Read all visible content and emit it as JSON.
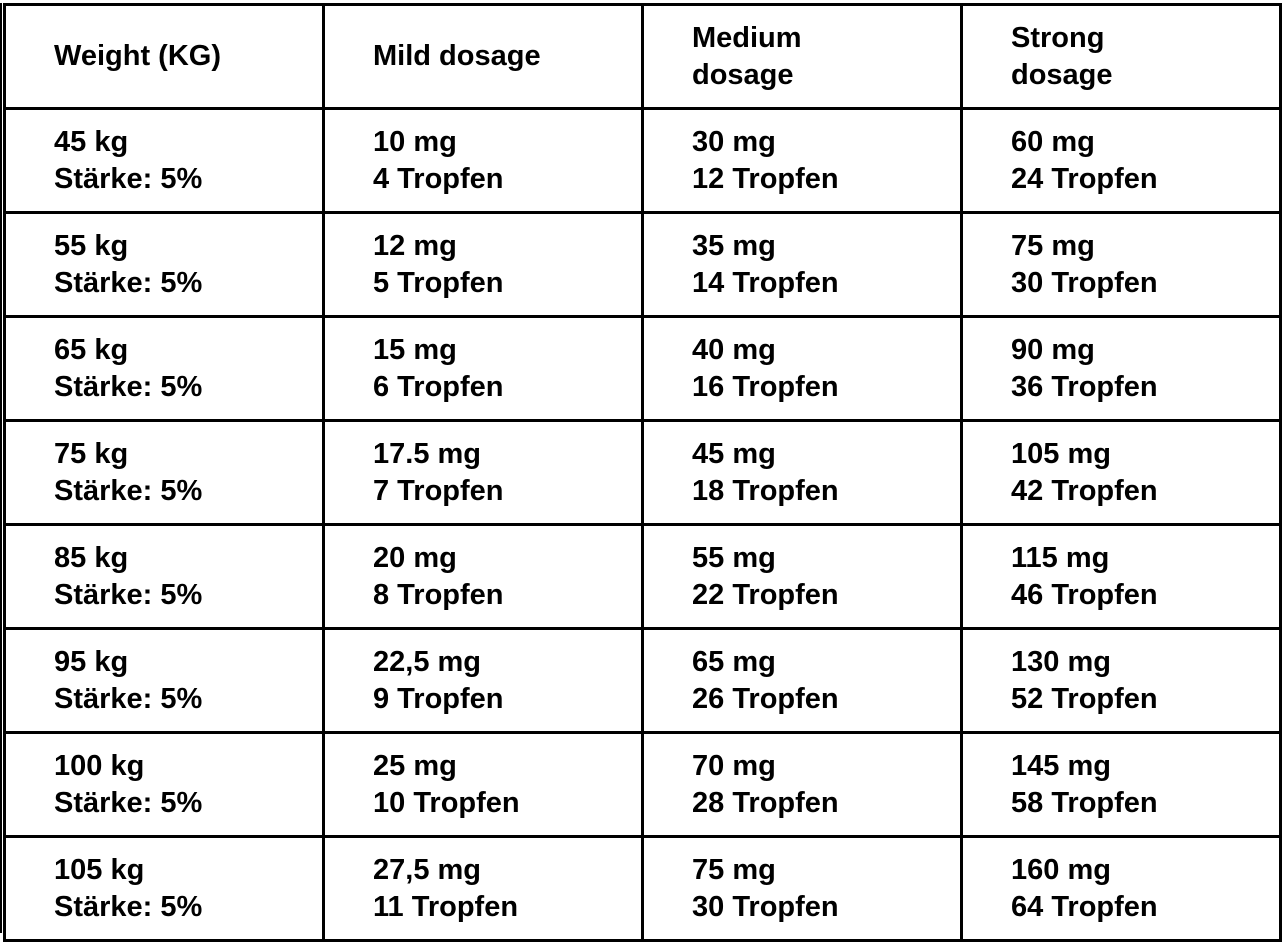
{
  "table": {
    "headers": [
      [
        "Weight (KG)"
      ],
      [
        "Mild dosage"
      ],
      [
        "Medium",
        "dosage"
      ],
      [
        "Strong",
        "dosage"
      ]
    ],
    "rows": [
      [
        [
          "45 kg",
          "Stärke: 5%"
        ],
        [
          "10 mg",
          "4 Tropfen"
        ],
        [
          "30 mg",
          "12 Tropfen"
        ],
        [
          "60 mg",
          "24 Tropfen"
        ]
      ],
      [
        [
          "55 kg",
          "Stärke: 5%"
        ],
        [
          "12 mg",
          "5 Tropfen"
        ],
        [
          "35 mg",
          "14 Tropfen"
        ],
        [
          "75 mg",
          "30 Tropfen"
        ]
      ],
      [
        [
          "65 kg",
          "Stärke: 5%"
        ],
        [
          "15 mg",
          "6 Tropfen"
        ],
        [
          "40 mg",
          "16 Tropfen"
        ],
        [
          "90 mg",
          "36 Tropfen"
        ]
      ],
      [
        [
          "75 kg",
          "Stärke: 5%"
        ],
        [
          "17.5 mg",
          "7 Tropfen"
        ],
        [
          "45 mg",
          "18 Tropfen"
        ],
        [
          "105 mg",
          "42 Tropfen"
        ]
      ],
      [
        [
          "85 kg",
          "Stärke: 5%"
        ],
        [
          "20 mg",
          "8 Tropfen"
        ],
        [
          "55 mg",
          "22 Tropfen"
        ],
        [
          "115 mg",
          "46 Tropfen"
        ]
      ],
      [
        [
          "95 kg",
          "Stärke: 5%"
        ],
        [
          "22,5 mg",
          "9 Tropfen"
        ],
        [
          "65 mg",
          "26 Tropfen"
        ],
        [
          "130 mg",
          "52 Tropfen"
        ]
      ],
      [
        [
          "100 kg",
          "Stärke: 5%"
        ],
        [
          "25 mg",
          "10 Tropfen"
        ],
        [
          "70 mg",
          "28 Tropfen"
        ],
        [
          "145 mg",
          "58 Tropfen"
        ]
      ],
      [
        [
          "105 kg",
          "Stärke: 5%"
        ],
        [
          "27,5 mg",
          "11 Tropfen"
        ],
        [
          "75 mg",
          "30 Tropfen"
        ],
        [
          "160 mg",
          "64 Tropfen"
        ]
      ]
    ]
  }
}
